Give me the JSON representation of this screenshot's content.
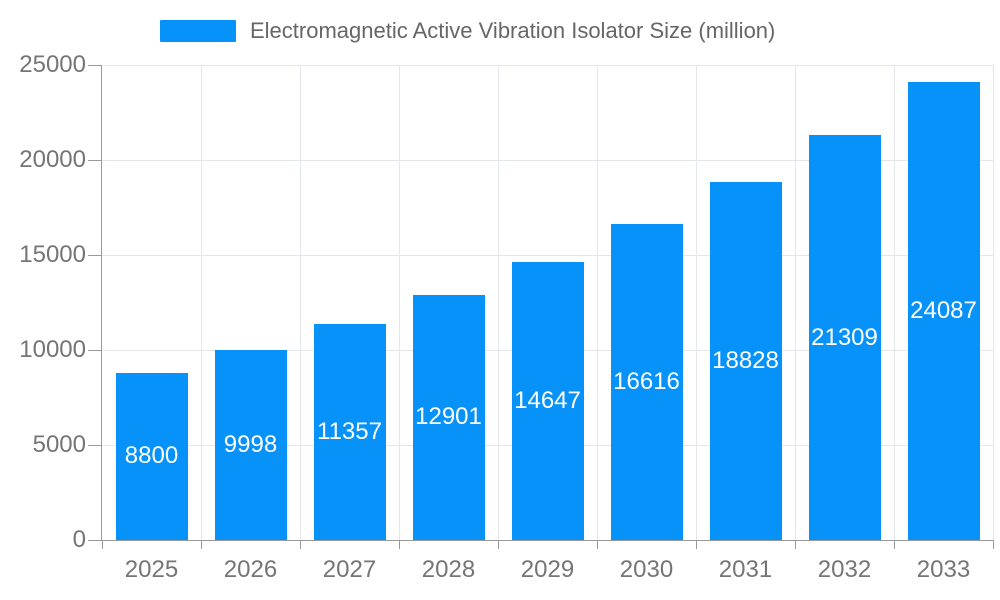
{
  "legend": {
    "label": "Electromagnetic Active Vibration Isolator Size (million)"
  },
  "colors": {
    "bar": "#0692F9",
    "legend_swatch": "#0692F9",
    "legend_text": "#666666",
    "axis_text": "#757575",
    "axis_line": "#999999",
    "grid_line": "#E3E6EB",
    "bar_label_text": "#FFFFFF",
    "background": "#FFFFFF"
  },
  "chart_data": {
    "type": "bar",
    "title": "Electromagnetic Active Vibration Isolator Size (million)",
    "categories": [
      "2025",
      "2026",
      "2027",
      "2028",
      "2029",
      "2030",
      "2031",
      "2032",
      "2033"
    ],
    "series": [
      {
        "name": "Electromagnetic Active Vibration Isolator Size (million)",
        "values": [
          8800,
          9998,
          11357,
          12901,
          14647,
          16616,
          18828,
          21309,
          24087
        ]
      }
    ],
    "xlabel": "",
    "ylabel": "",
    "ylim": [
      0,
      25000
    ],
    "y_ticks": [
      0,
      5000,
      10000,
      15000,
      20000,
      25000
    ],
    "grid": true,
    "legend_position": "top",
    "bar_label_position": "inside-center"
  }
}
